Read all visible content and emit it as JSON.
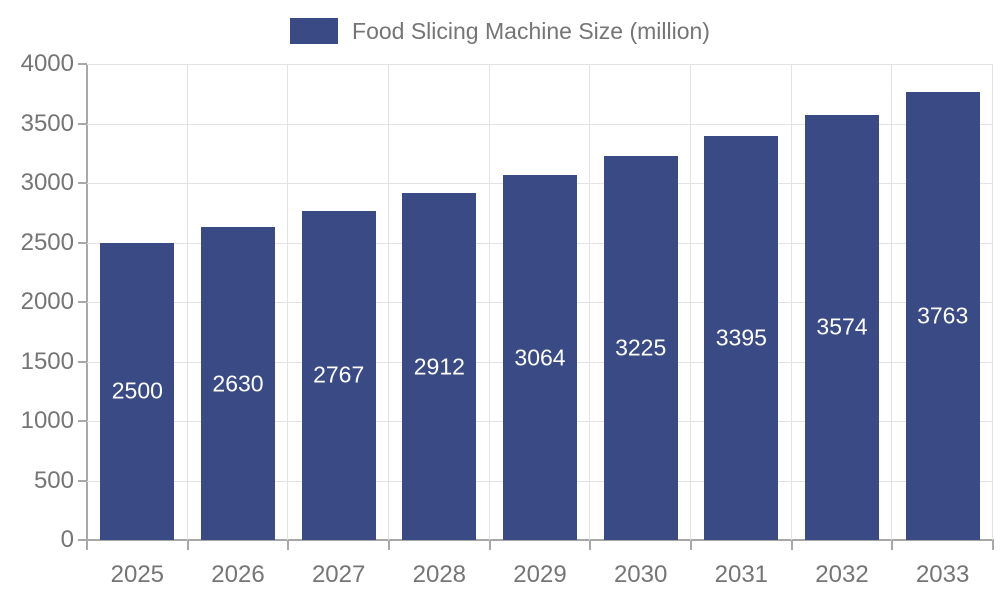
{
  "chart_data": {
    "type": "bar",
    "title": "Food Slicing Machine Size (million)",
    "legend": {
      "label": "Food Slicing Machine Size (million)",
      "position": "top"
    },
    "categories": [
      "2025",
      "2026",
      "2027",
      "2028",
      "2029",
      "2030",
      "2031",
      "2032",
      "2033"
    ],
    "series": [
      {
        "name": "Food Slicing Machine Size (million)",
        "values": [
          2500,
          2630,
          2767,
          2912,
          3064,
          3225,
          3395,
          3574,
          3763
        ]
      }
    ],
    "bar_value_labels": [
      "2500",
      "2630",
      "2767",
      "2912",
      "3064",
      "3225",
      "3395",
      "3574",
      "3763"
    ],
    "xlabel": "",
    "ylabel": "",
    "ylim": [
      0,
      4000
    ],
    "yticks": [
      0,
      500,
      1000,
      1500,
      2000,
      2500,
      3000,
      3500,
      4000
    ],
    "grid": true,
    "colors": {
      "bar": "#394a85",
      "bar_label": "#ffffff",
      "axis_text": "#757575",
      "grid": "#e3e3e3",
      "axis_line": "#a8a8a8",
      "background": "#ffffff"
    }
  }
}
